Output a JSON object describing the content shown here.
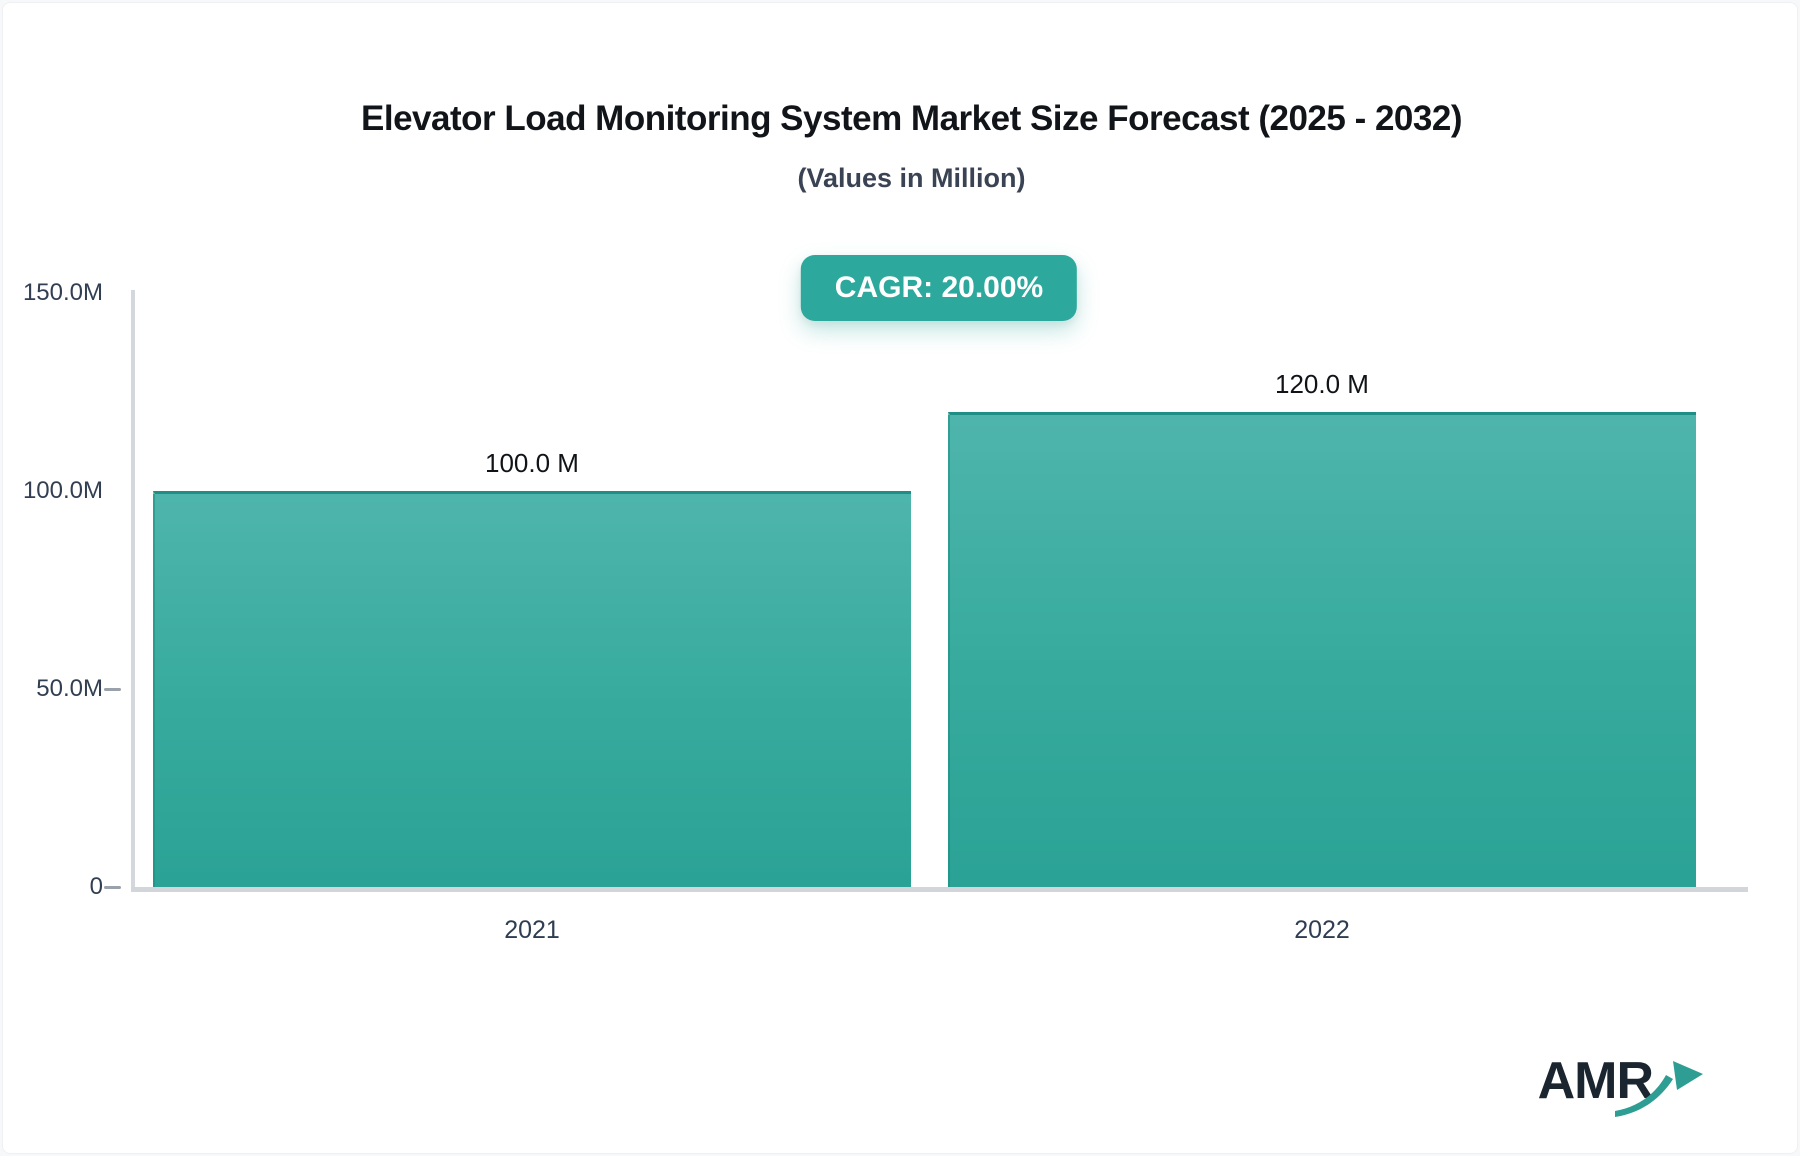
{
  "header": {
    "title": "Elevator Load Monitoring System Market Size Forecast (2025 - 2032)",
    "subtitle": "(Values in Million)",
    "badge_label": "CAGR: 20.00%"
  },
  "chart_data": {
    "type": "bar",
    "categories": [
      "2021",
      "2022"
    ],
    "values": [
      100.0,
      120.0
    ],
    "value_labels": [
      "100.0 M",
      "120.0 M"
    ],
    "title": "Elevator Load Monitoring System Market Size Forecast (2025 - 2032)",
    "subtitle": "(Values in Million)",
    "annotation": "CAGR: 20.00%",
    "xlabel": "",
    "ylabel": "",
    "ylim": [
      0,
      150
    ],
    "y_tick_labels": [
      "150.0M",
      "100.0M",
      "50.0M",
      "0"
    ],
    "y_tick_values": [
      150,
      100,
      50,
      0
    ],
    "grid": false,
    "legend": false,
    "unit": "Million"
  },
  "colors": {
    "bar_top": "#4fb5ac",
    "bar_bottom": "#2aa295",
    "bar_stroke": "#1f8e84",
    "badge_bg": "#2ca89c",
    "axis_line": "#d4d8de",
    "label_text": "#323f52",
    "title_text": "#111418",
    "logo_text": "#1a2530",
    "logo_arrow": "#2e9d93"
  },
  "logo": {
    "text": "AMR"
  }
}
